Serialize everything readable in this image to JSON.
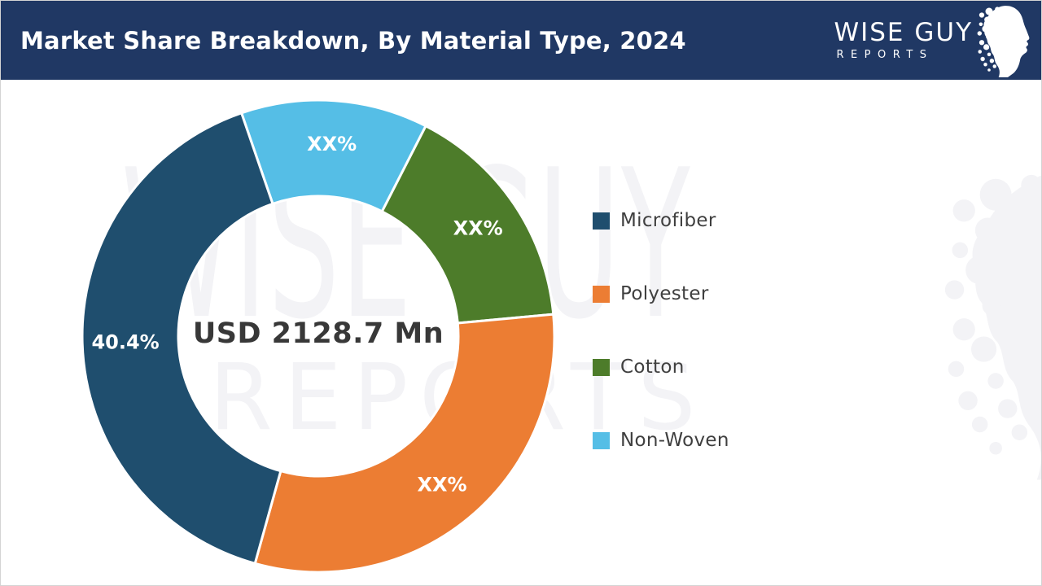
{
  "header": {
    "title": "Market Share Breakdown, By Material Type, 2024",
    "bg_color": "#203864",
    "logo": {
      "line1": "WISE GUY",
      "line2": "REPORTS"
    }
  },
  "watermark": {
    "line1": "WISE GUY",
    "line2": "REPORTS"
  },
  "chart_data": {
    "type": "pie",
    "donut": true,
    "title": "Market Share Breakdown, By Material Type, 2024",
    "year": "2024",
    "center_total": "USD 2128.7 Mn",
    "start_angle_deg": -19,
    "legend_position": "right",
    "segments": [
      {
        "name": "Non-Woven",
        "label": "XX%",
        "value_pct": 12.8,
        "color": "#55BEE6"
      },
      {
        "name": "Cotton",
        "label": "XX%",
        "value_pct": 16.0,
        "color": "#4D7C2A"
      },
      {
        "name": "Polyester",
        "label": "XX%",
        "value_pct": 30.8,
        "color": "#EC7D33"
      },
      {
        "name": "Microfiber",
        "label": "40.4%",
        "value_pct": 40.4,
        "color": "#1F4E6E"
      }
    ],
    "legend": [
      {
        "label": "Microfiber",
        "color": "#1F4E6E"
      },
      {
        "label": "Polyester",
        "color": "#EC7D33"
      },
      {
        "label": "Cotton",
        "color": "#4D7C2A"
      },
      {
        "label": "Non-Woven",
        "color": "#55BEE6"
      }
    ]
  }
}
